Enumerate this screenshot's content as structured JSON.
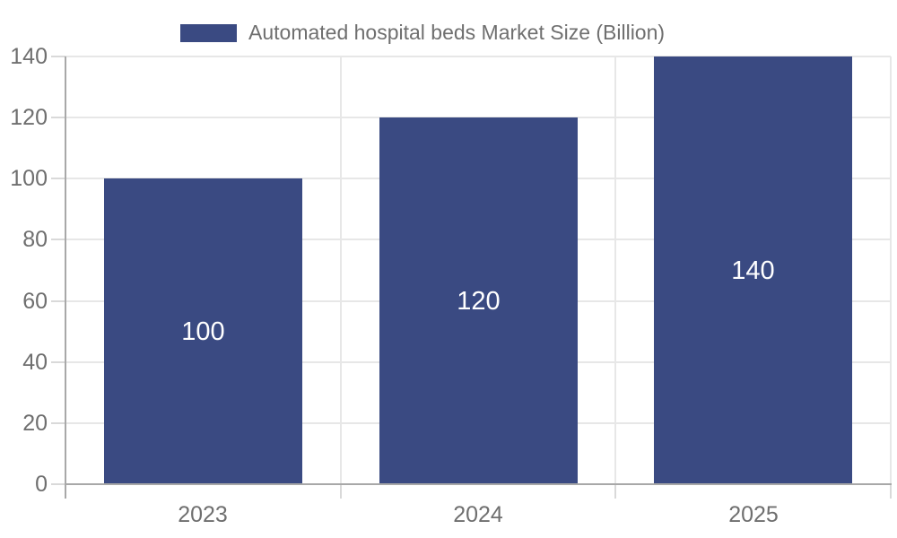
{
  "legend": {
    "label": "Automated hospital beds Market Size (Billion)"
  },
  "chart_data": {
    "type": "bar",
    "title": "Automated hospital beds Market Size (Billion)",
    "series": [
      {
        "name": "Automated hospital beds Market Size (Billion)",
        "values": [
          100,
          120,
          140
        ],
        "data_labels": [
          "100",
          "120",
          "140"
        ]
      }
    ],
    "categories": [
      "2023",
      "2024",
      "2025"
    ],
    "xlabel": "",
    "ylabel": "",
    "ylim": [
      0,
      140
    ],
    "yticks": [
      0,
      20,
      40,
      60,
      80,
      100,
      120,
      140
    ],
    "ytick_labels": [
      "0",
      "20",
      "40",
      "60",
      "80",
      "100",
      "120",
      "140"
    ],
    "grid": true,
    "legend_position": "top",
    "colors": {
      "bar": "#3a4a82",
      "legend_swatch": "#3a4a82",
      "axis_line": "#a8a8a8",
      "gridline": "#e7e7e7",
      "tick_mark": "#d9d9d9",
      "tick_text": "#6f6f6f",
      "bar_label_text": "#ffffff",
      "background": "#ffffff"
    }
  }
}
